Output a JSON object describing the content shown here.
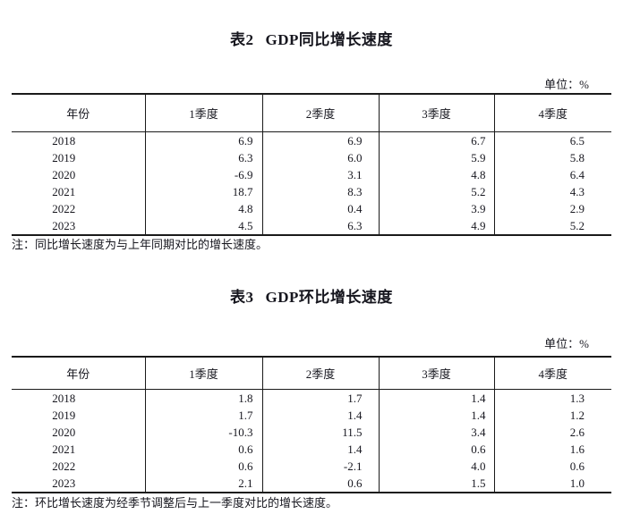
{
  "colors": {
    "background": "#ffffff",
    "text": "#16161e",
    "table_border": "#1a1a1a"
  },
  "tables": [
    {
      "title_prefix": "表2",
      "title": "GDP同比增长速度",
      "unit": "单位：%",
      "columns": [
        "年份",
        "1季度",
        "2季度",
        "3季度",
        "4季度"
      ],
      "rows": [
        {
          "year": "2018",
          "q1": "6.9",
          "q2": "6.9",
          "q3": "6.7",
          "q4": "6.5"
        },
        {
          "year": "2019",
          "q1": "6.3",
          "q2": "6.0",
          "q3": "5.9",
          "q4": "5.8"
        },
        {
          "year": "2020",
          "q1": "-6.9",
          "q2": "3.1",
          "q3": "4.8",
          "q4": "6.4"
        },
        {
          "year": "2021",
          "q1": "18.7",
          "q2": "8.3",
          "q3": "5.2",
          "q4": "4.3"
        },
        {
          "year": "2022",
          "q1": "4.8",
          "q2": "0.4",
          "q3": "3.9",
          "q4": "2.9"
        },
        {
          "year": "2023",
          "q1": "4.5",
          "q2": "6.3",
          "q3": "4.9",
          "q4": "5.2"
        }
      ],
      "note": "注：同比增长速度为与上年同期对比的增长速度。"
    },
    {
      "title_prefix": "表3",
      "title": "GDP环比增长速度",
      "unit": "单位：%",
      "columns": [
        "年份",
        "1季度",
        "2季度",
        "3季度",
        "4季度"
      ],
      "rows": [
        {
          "year": "2018",
          "q1": "1.8",
          "q2": "1.7",
          "q3": "1.4",
          "q4": "1.3"
        },
        {
          "year": "2019",
          "q1": "1.7",
          "q2": "1.4",
          "q3": "1.4",
          "q4": "1.2"
        },
        {
          "year": "2020",
          "q1": "-10.3",
          "q2": "11.5",
          "q3": "3.4",
          "q4": "2.6"
        },
        {
          "year": "2021",
          "q1": "0.6",
          "q2": "1.4",
          "q3": "0.6",
          "q4": "1.6"
        },
        {
          "year": "2022",
          "q1": "0.6",
          "q2": "-2.1",
          "q3": "4.0",
          "q4": "0.6"
        },
        {
          "year": "2023",
          "q1": "2.1",
          "q2": "0.6",
          "q3": "1.5",
          "q4": "1.0"
        }
      ],
      "note": "注：环比增长速度为经季节调整后与上一季度对比的增长速度。"
    }
  ]
}
